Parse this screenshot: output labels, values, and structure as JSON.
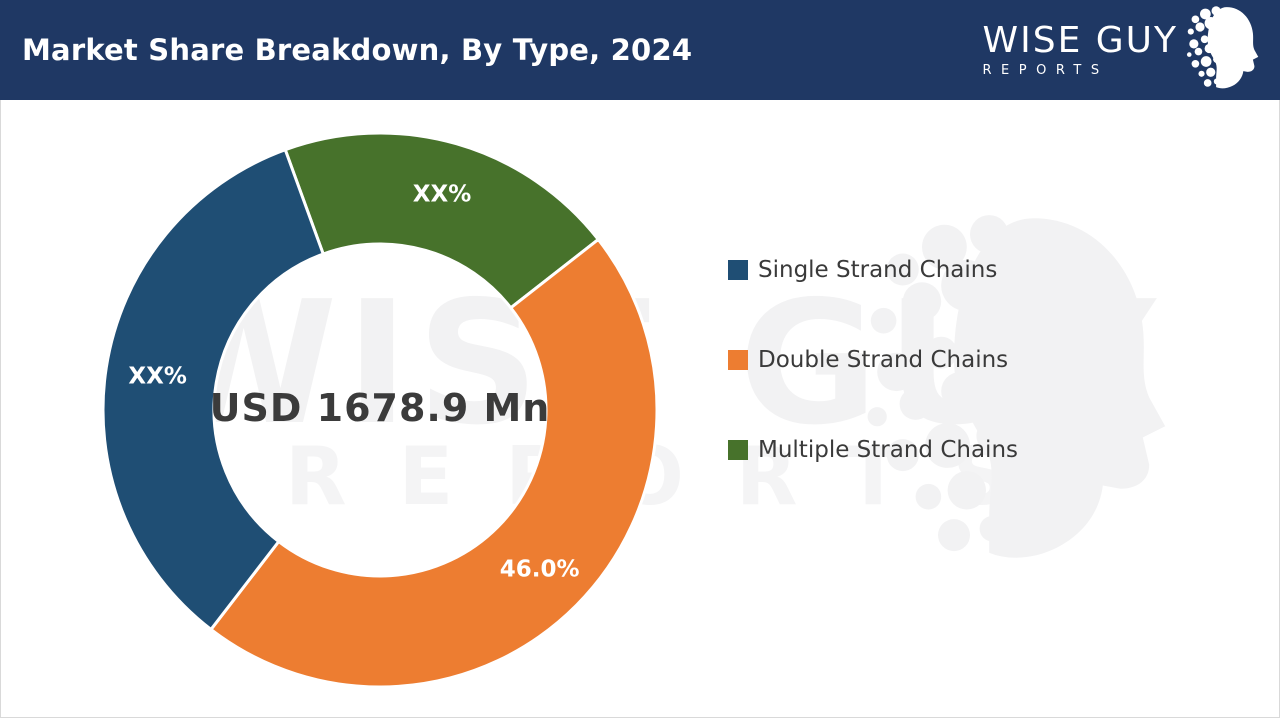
{
  "header": {
    "title": "Market Share Breakdown, By Type, 2024",
    "bg_color": "#1f3864",
    "logo": {
      "line1": "WISE GUY",
      "line2": "REPORTS"
    }
  },
  "chart_data": {
    "type": "pie",
    "subtype": "donut",
    "title": "Market Share Breakdown, By Type, 2024",
    "center_label": "USD 1678.9 Mn",
    "start_angle_deg": -20,
    "segments": [
      {
        "name": "Multiple Strand Chains",
        "value_pct": 20,
        "display_label": "XX%",
        "color": "#47722b"
      },
      {
        "name": "Double Strand Chains",
        "value_pct": 46,
        "display_label": "46.0%",
        "color": "#ed7d31"
      },
      {
        "name": "Single Strand Chains",
        "value_pct": 34,
        "display_label": "XX%",
        "color": "#1f4e74"
      }
    ],
    "legend": [
      {
        "label": "Single Strand Chains",
        "color": "#1f4e74"
      },
      {
        "label": "Double Strand Chains",
        "color": "#ed7d31"
      },
      {
        "label": "Multiple Strand Chains",
        "color": "#47722b"
      }
    ],
    "legend_position": "right",
    "gap_color": "#ffffff"
  },
  "watermark": {
    "line1": "WISE GUY",
    "line2": "REPORTS"
  },
  "colors": {
    "header_bg": "#1f3864",
    "border": "#d9d9d9",
    "center_text": "#3b3b3b",
    "legend_text": "#3a3a3a",
    "watermark": "#f2f2f3"
  }
}
